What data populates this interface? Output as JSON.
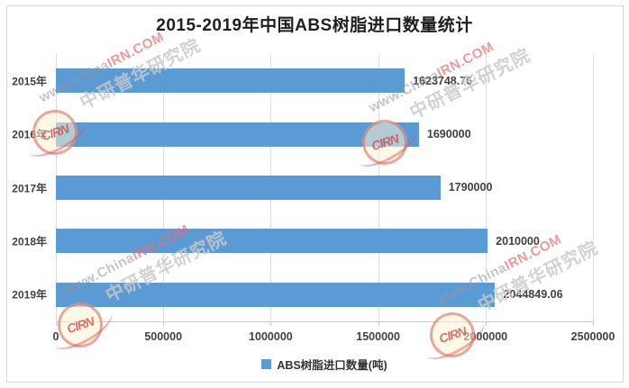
{
  "title": "2015-2019年中国ABS树脂进口数量统计",
  "chart_data": {
    "type": "bar",
    "orientation": "horizontal",
    "title": "2015-2019年中国ABS树脂进口数量统计",
    "categories": [
      "2015年",
      "2016年",
      "2017年",
      "2018年",
      "2019年"
    ],
    "series": [
      {
        "name": "ABS树脂进口数量(吨)",
        "values": [
          1623748.76,
          1690000,
          1790000,
          2010000,
          2044849.06
        ]
      }
    ],
    "value_labels": [
      "1623748.76",
      "1690000",
      "1790000",
      "2010000",
      "2044849.06"
    ],
    "x_axis": {
      "min": 0,
      "max": 2500000,
      "tick_interval": 500000,
      "tick_labels": [
        "0",
        "500000",
        "1000000",
        "1500000",
        "2000000",
        "2500000"
      ]
    },
    "grid": true,
    "legend": {
      "position": "bottom",
      "entries": [
        "ABS树脂进口数量(吨)"
      ]
    },
    "bar_color": "#5B9BD5"
  },
  "colors": {
    "bar": "#5B9BD5",
    "gridline": "#dddddd",
    "axis_text": "#404040",
    "title_text": "#1f1f1f",
    "frame_border": "#d6d6d6",
    "watermark_red": "#ea6e6e",
    "watermark_gray": "#969696"
  },
  "watermark": {
    "url_prefix": "www.China",
    "url_suffix": "IRN.COM",
    "org_name": "中研普华研究院",
    "logo_text": "CIRN"
  }
}
